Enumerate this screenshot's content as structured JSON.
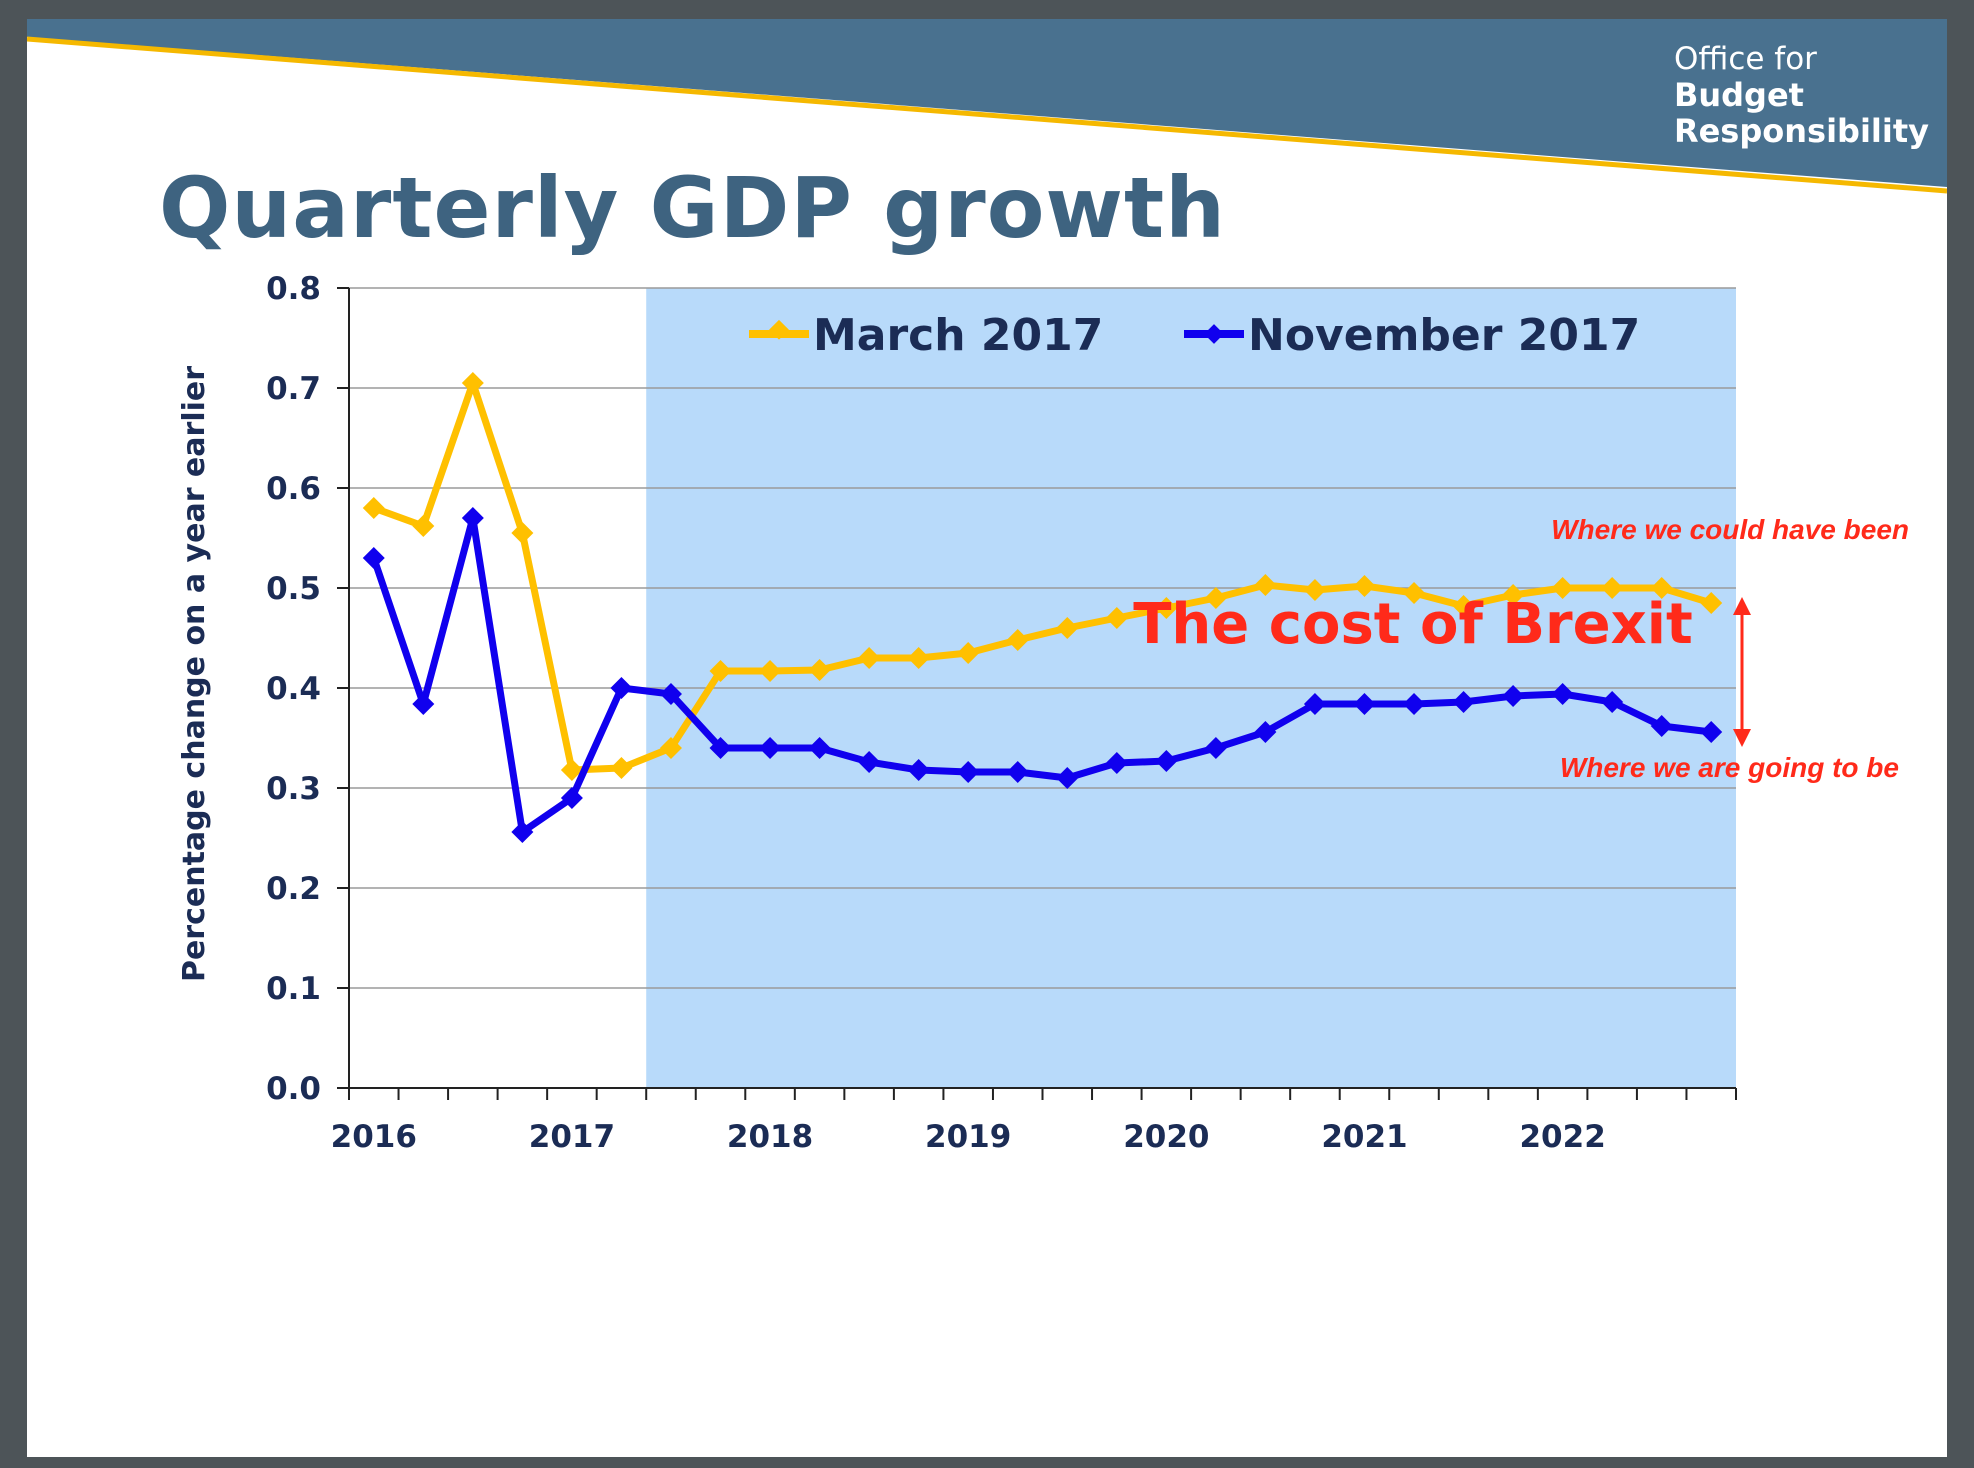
{
  "slide": {
    "title": "Quarterly GDP growth",
    "logo": {
      "line1": "Office for",
      "line2": "Budget",
      "line3": "Responsibility"
    },
    "colors": {
      "banner": "#49718f",
      "stripe": "#f5b800",
      "title": "#3e6380"
    }
  },
  "chart_data": {
    "type": "line",
    "ylabel": "Percentage change on a year earlier",
    "ylim": [
      0.0,
      0.8
    ],
    "yticks": [
      "0.0",
      "0.1",
      "0.2",
      "0.3",
      "0.4",
      "0.5",
      "0.6",
      "0.7",
      "0.8"
    ],
    "xtick_labels": [
      "2016",
      "2017",
      "2018",
      "2019",
      "2020",
      "2021",
      "2022"
    ],
    "quarters_per_year": 4,
    "grid": true,
    "legend_position": "top",
    "forecast_shading": {
      "start_quarter": 6,
      "end_quarter": 28,
      "color": "#b8dafa"
    },
    "series": [
      {
        "name": "March 2017",
        "color": "#ffc000",
        "values": [
          0.58,
          0.562,
          0.705,
          0.555,
          0.318,
          0.32,
          0.34,
          0.417,
          0.417,
          0.418,
          0.43,
          0.43,
          0.435,
          0.448,
          0.46,
          0.47,
          0.48,
          0.49,
          0.503,
          0.498,
          0.502,
          0.495,
          0.482,
          0.493,
          0.5,
          0.5,
          0.5,
          0.485
        ]
      },
      {
        "name": "November 2017",
        "color": "#1000ee",
        "values": [
          0.53,
          0.384,
          0.57,
          0.256,
          0.29,
          0.4,
          0.394,
          0.34,
          0.34,
          0.34,
          0.326,
          0.318,
          0.316,
          0.316,
          0.31,
          0.325,
          0.327,
          0.34,
          0.356,
          0.384,
          0.384,
          0.384,
          0.386,
          0.392,
          0.394,
          0.386,
          0.362,
          0.356
        ]
      }
    ],
    "annotations": {
      "upper": "Where we could have been",
      "middle": "The cost of Brexit",
      "lower": "Where we are going to be",
      "color": "#ff2a1a"
    }
  }
}
